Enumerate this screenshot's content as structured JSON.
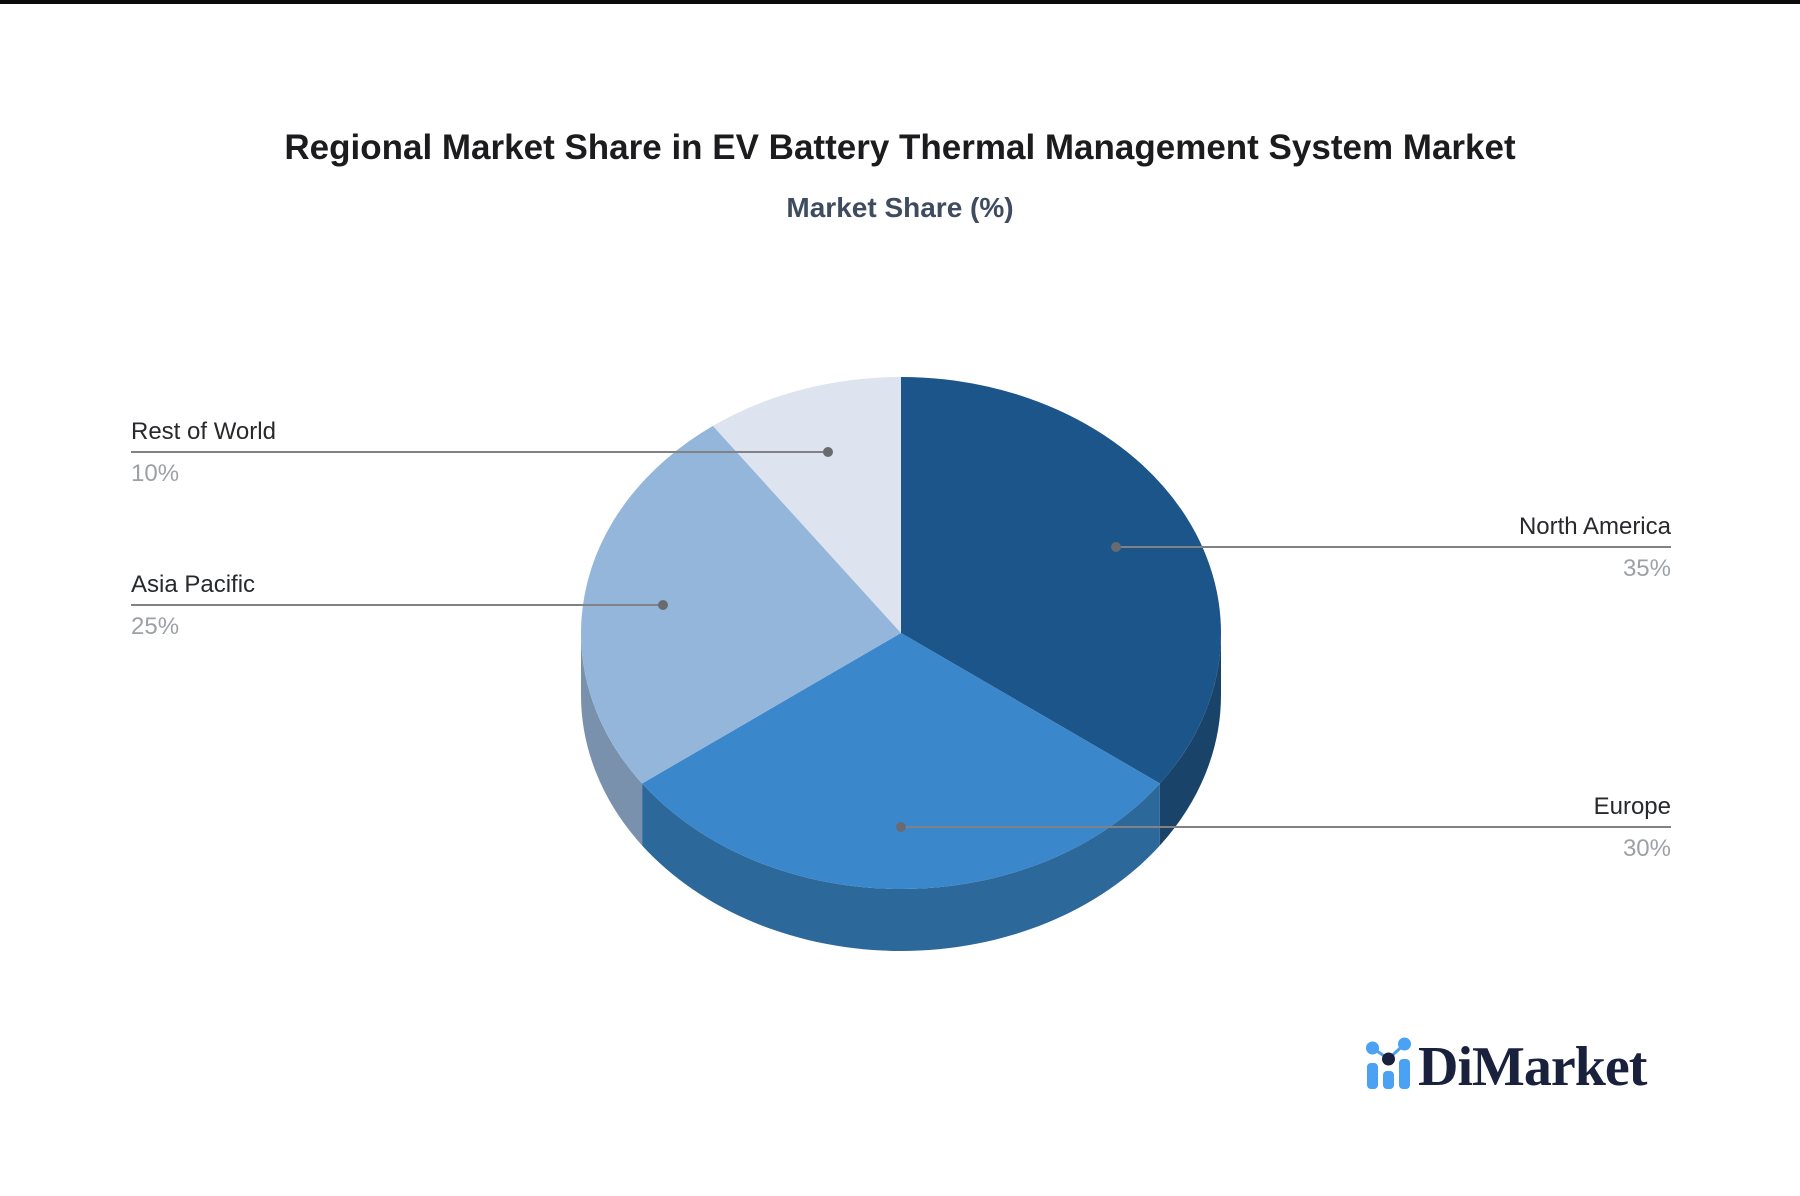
{
  "chart_data": {
    "type": "pie",
    "projection": "3d",
    "title": "Regional Market Share in EV Battery Thermal Management System Market",
    "subtitle": "Market Share (%)",
    "unit": "%",
    "direction": "clockwise",
    "start_angle_deg": 0,
    "legend_position": "callout-labels",
    "slices": [
      {
        "label": "North America",
        "value": 35,
        "value_label": "35%",
        "color": "#1C5589",
        "side_color": "#1A436A"
      },
      {
        "label": "Europe",
        "value": 30,
        "value_label": "30%",
        "color": "#3B87CB",
        "side_color": "#2D689B"
      },
      {
        "label": "Asia Pacific",
        "value": 25,
        "value_label": "25%",
        "color": "#94B6DB",
        "side_color": "#7991AD"
      },
      {
        "label": "Rest of World",
        "value": 10,
        "value_label": "10%",
        "color": "#DDE4EF"
      }
    ]
  },
  "style_colors": {
    "title": "#1C1C1E",
    "subtitle": "#3F4C5F",
    "label": "#27292C",
    "percent": "#9DA1A6",
    "leader_line": "#808285",
    "leader_dot": "#686B70"
  },
  "logo": {
    "text": "DiMarket",
    "navy": "#19213D",
    "blue": "#4BA1F4"
  }
}
